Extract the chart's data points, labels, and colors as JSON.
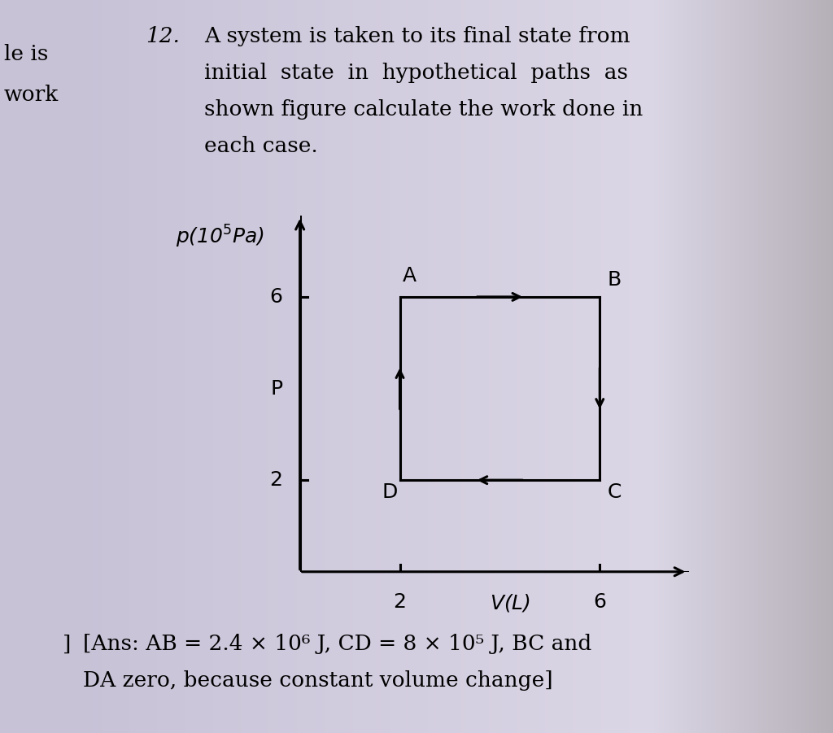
{
  "fig_width": 10.24,
  "fig_height": 9.01,
  "dpi": 100,
  "bg_color": "#c8c4dc",
  "A": [
    2,
    6
  ],
  "B": [
    6,
    6
  ],
  "C": [
    6,
    2
  ],
  "D": [
    2,
    2
  ],
  "xlim": [
    0,
    8.0
  ],
  "ylim": [
    0,
    8.0
  ],
  "xticks": [
    2,
    6
  ],
  "yticks": [
    2,
    6
  ],
  "fs_tick": 18,
  "fs_label": 18,
  "fs_point": 18,
  "fs_title": 19,
  "fs_answer": 19,
  "line1": "A system is taken to its final state from",
  "line2": "initial  state  in  hypothetical  paths  as",
  "line3": "shown figure calculate the work done in",
  "line4": "each case.",
  "left_text1": "le is",
  "left_text2": "work",
  "qnum": "12.",
  "answer_line1": "[Ans: AB = 2.4 × 10⁶ J, CD = 8 × 10⁵ J, BC and",
  "answer_line2": "DA zero, because constant volume change]"
}
